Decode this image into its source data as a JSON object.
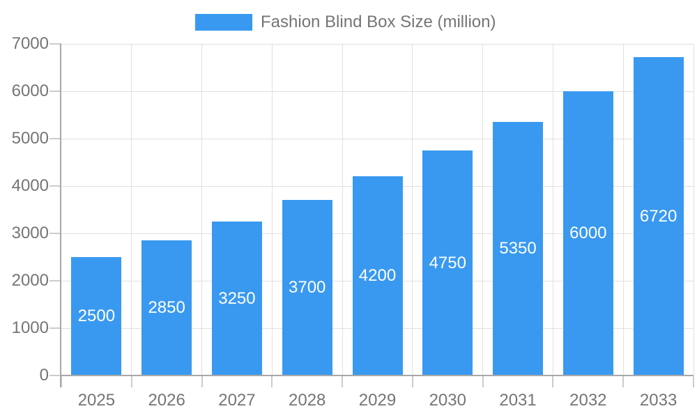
{
  "legend": {
    "label": "Fashion Blind Box Size (million)"
  },
  "chart_data": {
    "type": "bar",
    "title": "Fashion Blind Box Size (million)",
    "categories": [
      "2025",
      "2026",
      "2027",
      "2028",
      "2029",
      "2030",
      "2031",
      "2032",
      "2033"
    ],
    "values": [
      2500,
      2850,
      3250,
      3700,
      4200,
      4750,
      5350,
      6000,
      6720
    ],
    "xlabel": "",
    "ylabel": "",
    "ylim": [
      0,
      7000
    ],
    "y_ticks": [
      0,
      1000,
      2000,
      3000,
      4000,
      5000,
      6000,
      7000
    ],
    "grid": true,
    "legend_position": "top-center",
    "value_labels_position": "inside-center",
    "colors": {
      "bar": "#3999F0",
      "value_label": "#FFFFFF",
      "axis_text": "#757575",
      "grid": "#E0E0E0",
      "tick": "#CCCCCC",
      "axis_line": "#A8A8A8",
      "background": "#FFFFFF"
    }
  }
}
